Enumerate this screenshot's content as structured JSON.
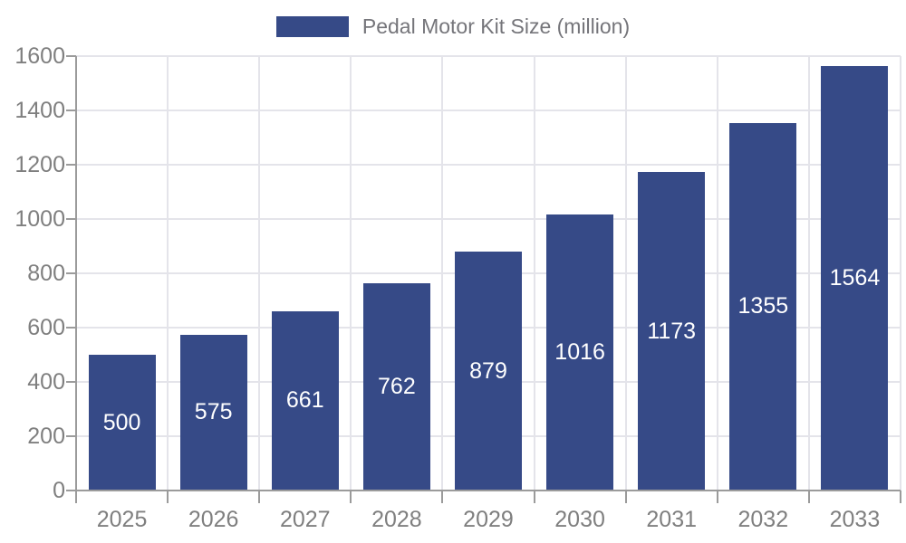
{
  "legend": {
    "label": "Pedal Motor Kit Size (million)"
  },
  "colors": {
    "bar": "#364a87",
    "grid": "#e4e4ea",
    "axis": "#9b9b9b",
    "tick_label": "#7f7f7f",
    "legend_text": "#75757a",
    "value_label": "#ffffff",
    "background": "#ffffff"
  },
  "chart_data": {
    "type": "bar",
    "title": "Pedal Motor Kit Size (million)",
    "categories": [
      "2025",
      "2026",
      "2027",
      "2028",
      "2029",
      "2030",
      "2031",
      "2032",
      "2033"
    ],
    "series": [
      {
        "name": "Pedal Motor Kit Size (million)",
        "values": [
          500,
          575,
          661,
          762,
          879,
          1016,
          1173,
          1355,
          1564
        ]
      }
    ],
    "values": [
      500,
      575,
      661,
      762,
      879,
      1016,
      1173,
      1355,
      1564
    ],
    "xlabel": "",
    "ylabel": "",
    "ylim": [
      0,
      1600
    ],
    "ytick_step": 200,
    "yticks": [
      "0",
      "200",
      "400",
      "600",
      "800",
      "1000",
      "1200",
      "1400",
      "1600"
    ],
    "grid": true,
    "legend_position": "top",
    "value_label_position": "inside-center"
  }
}
